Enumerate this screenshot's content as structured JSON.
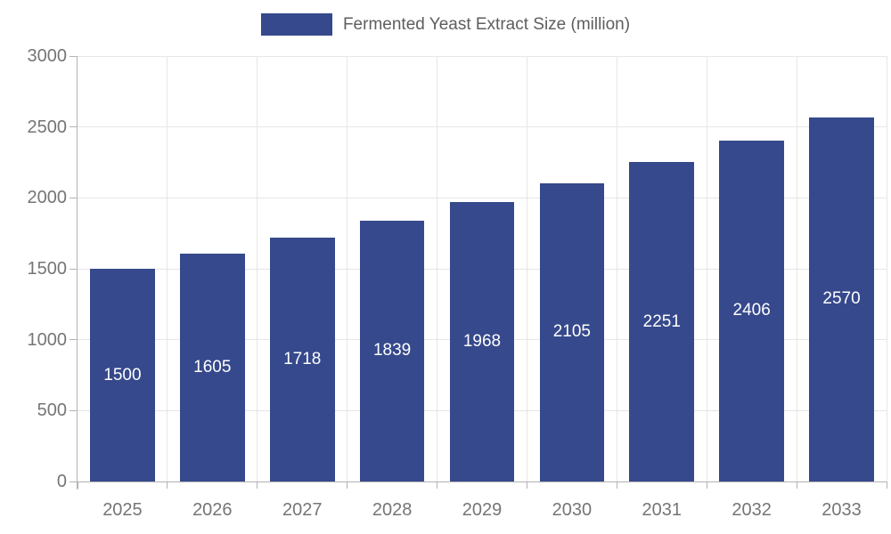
{
  "chart_data": {
    "type": "bar",
    "title": "",
    "legend": "Fermented Yeast Extract Size (million)",
    "categories": [
      "2025",
      "2026",
      "2027",
      "2028",
      "2029",
      "2030",
      "2031",
      "2032",
      "2033"
    ],
    "values": [
      1500,
      1605,
      1718,
      1839,
      1968,
      2105,
      2251,
      2406,
      2570
    ],
    "ylim": [
      0,
      3000
    ],
    "yticks": [
      0,
      500,
      1000,
      1500,
      2000,
      2500,
      3000
    ],
    "grid": true,
    "legend_position": "top-center",
    "bar_width_fraction": 0.72,
    "colors": {
      "bar": "#36498C",
      "grid": "#e6e6e6",
      "axis": "#b3b3b3",
      "tick_label": "#757575",
      "legend_text": "#5e5e5e",
      "value_label": "#ffffff",
      "background": "#ffffff"
    }
  }
}
